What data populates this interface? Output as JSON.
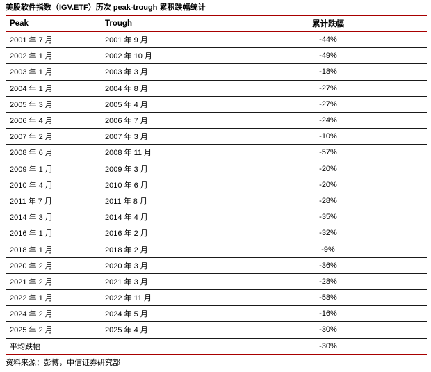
{
  "title": "美股软件指数（IGV.ETF）历次 peak-trough 累积跌幅统计",
  "table": {
    "headers": {
      "peak": "Peak",
      "trough": "Trough",
      "drawdown": "累计跌幅"
    },
    "rows": [
      {
        "peak": "2001 年 7 月",
        "trough": "2001 年 9 月",
        "drawdown": "-44%"
      },
      {
        "peak": "2002 年 1 月",
        "trough": "2002 年 10 月",
        "drawdown": "-49%"
      },
      {
        "peak": "2003 年 1 月",
        "trough": "2003 年 3 月",
        "drawdown": "-18%"
      },
      {
        "peak": "2004 年 1 月",
        "trough": "2004 年 8 月",
        "drawdown": "-27%"
      },
      {
        "peak": "2005 年 3 月",
        "trough": "2005 年 4 月",
        "drawdown": "-27%"
      },
      {
        "peak": "2006 年 4 月",
        "trough": "2006 年 7 月",
        "drawdown": "-24%"
      },
      {
        "peak": "2007 年 2 月",
        "trough": "2007 年 3 月",
        "drawdown": "-10%"
      },
      {
        "peak": "2008 年 6 月",
        "trough": "2008 年 11 月",
        "drawdown": "-57%"
      },
      {
        "peak": "2009 年 1 月",
        "trough": "2009 年 3 月",
        "drawdown": "-20%"
      },
      {
        "peak": "2010 年 4 月",
        "trough": "2010 年 6 月",
        "drawdown": "-20%"
      },
      {
        "peak": "2011 年 7 月",
        "trough": "2011 年 8 月",
        "drawdown": "-28%"
      },
      {
        "peak": "2014 年 3 月",
        "trough": "2014 年 4 月",
        "drawdown": "-35%"
      },
      {
        "peak": "2016 年 1 月",
        "trough": "2016 年 2 月",
        "drawdown": "-32%"
      },
      {
        "peak": "2018 年 1 月",
        "trough": "2018 年 2 月",
        "drawdown": "-9%"
      },
      {
        "peak": "2020 年 2 月",
        "trough": "2020 年 3 月",
        "drawdown": "-36%"
      },
      {
        "peak": "2021 年 2 月",
        "trough": "2021 年 3 月",
        "drawdown": "-28%"
      },
      {
        "peak": "2022 年 1 月",
        "trough": "2022 年 11 月",
        "drawdown": "-58%"
      },
      {
        "peak": "2024 年 2 月",
        "trough": "2024 年 5 月",
        "drawdown": "-16%"
      },
      {
        "peak": "2025 年 2 月",
        "trough": "2025 年 4 月",
        "drawdown": "-30%"
      },
      {
        "peak": "平均跌幅",
        "trough": "",
        "drawdown": "-30%",
        "is_summary": true
      }
    ]
  },
  "source": "资料来源：彭博，中信证券研究部",
  "colors": {
    "accent_red": "#a80000",
    "row_divider": "#1a1a1a",
    "text": "#000000",
    "background": "#ffffff"
  }
}
